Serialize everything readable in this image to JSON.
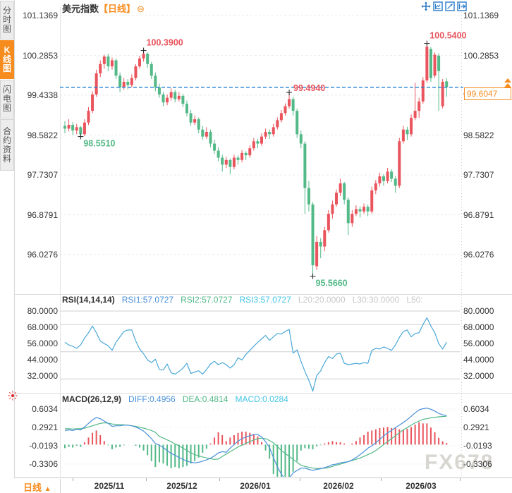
{
  "window": {
    "title_symbol": "美元指数",
    "title_period": "【日线】",
    "collapse_glyph": "⊖"
  },
  "sidebar": {
    "tabs": [
      {
        "label": "分时图",
        "active": false
      },
      {
        "label": "K线图",
        "active": true
      },
      {
        "label": "闪电图",
        "active": false
      },
      {
        "label": "合约资料",
        "active": false
      }
    ]
  },
  "toolbar": {
    "icons": [
      "move-crosshair",
      "axis-scale",
      "trend-measure",
      "pan-right"
    ]
  },
  "bottom_bar": {
    "period_label": "日线",
    "period_arrow": "▲",
    "dates": [
      "2025/11",
      "2025/12",
      "2026/01",
      "2026/02",
      "2026/03"
    ]
  },
  "watermark": "FX678",
  "price_tag": {
    "value": "99.6047"
  },
  "colors": {
    "up": "#e9545d",
    "down": "#53b987",
    "accent_orange": "#f78c1e",
    "last_price_line": "#2080d8",
    "rsi_line": "#4aa8d8",
    "diff_line": "#4a90d9",
    "dea_line": "#53b987",
    "grid": "#ebebeb",
    "ref_line": "#cfcfcf",
    "axis_text": "#333333",
    "toolbar_blue": "#2b7cc9",
    "flash_red": "#e03030",
    "cross": "#222222"
  },
  "chart_data": [
    {
      "type": "candlestick",
      "title": "美元指数 日线",
      "y_ticks": [
        "101.1369",
        "100.2853",
        "99.4338",
        "98.5822",
        "97.7307",
        "96.8791",
        "96.0276"
      ],
      "x_labels": [
        "2025/11",
        "2025/12",
        "2026/01",
        "2026/02",
        "2026/03"
      ],
      "last_price": 99.6047,
      "annotations": [
        {
          "index": 20,
          "price": 100.39,
          "label": "100.3900",
          "color": "#e9545d",
          "side": "above"
        },
        {
          "index": 4,
          "price": 98.551,
          "label": "98.5510",
          "color": "#53b987",
          "side": "below"
        },
        {
          "index": 57,
          "price": 99.494,
          "label": "99.4940",
          "color": "#e9545d",
          "side": "right"
        },
        {
          "index": 92,
          "price": 100.54,
          "label": "100.5400",
          "color": "#e9545d",
          "side": "above"
        },
        {
          "index": 63,
          "price": 95.566,
          "label": "95.5660",
          "color": "#53b987",
          "side": "below"
        }
      ],
      "candles": [
        [
          98.78,
          98.88,
          98.62,
          98.72
        ],
        [
          98.72,
          98.92,
          98.66,
          98.8
        ],
        [
          98.8,
          98.86,
          98.58,
          98.68
        ],
        [
          98.68,
          98.82,
          98.6,
          98.75
        ],
        [
          98.75,
          98.78,
          98.551,
          98.6
        ],
        [
          98.6,
          98.92,
          98.56,
          98.85
        ],
        [
          98.85,
          99.18,
          98.8,
          99.1
        ],
        [
          99.1,
          99.52,
          99.05,
          99.45
        ],
        [
          99.45,
          99.98,
          99.4,
          99.9
        ],
        [
          99.9,
          100.18,
          99.82,
          100.1
        ],
        [
          100.1,
          100.3,
          100.0,
          100.26
        ],
        [
          100.26,
          100.32,
          99.95,
          100.05
        ],
        [
          100.05,
          100.24,
          99.98,
          100.18
        ],
        [
          100.18,
          100.22,
          99.78,
          99.85
        ],
        [
          99.85,
          99.92,
          99.5,
          99.6
        ],
        [
          99.6,
          99.8,
          99.55,
          99.72
        ],
        [
          99.72,
          99.78,
          99.56,
          99.65
        ],
        [
          99.65,
          99.88,
          99.6,
          99.8
        ],
        [
          99.8,
          100.1,
          99.75,
          100.05
        ],
        [
          100.05,
          100.28,
          100.0,
          100.22
        ],
        [
          100.22,
          100.39,
          100.15,
          100.32
        ],
        [
          100.32,
          100.35,
          100.02,
          100.1
        ],
        [
          100.1,
          100.15,
          99.78,
          99.85
        ],
        [
          99.85,
          99.92,
          99.52,
          99.6
        ],
        [
          99.6,
          99.68,
          99.38,
          99.45
        ],
        [
          99.45,
          99.5,
          99.2,
          99.28
        ],
        [
          99.28,
          99.45,
          99.22,
          99.38
        ],
        [
          99.38,
          99.58,
          99.32,
          99.5
        ],
        [
          99.5,
          99.55,
          99.28,
          99.35
        ],
        [
          99.35,
          99.5,
          99.3,
          99.42
        ],
        [
          99.42,
          99.46,
          99.18,
          99.25
        ],
        [
          99.25,
          99.32,
          98.98,
          99.05
        ],
        [
          99.05,
          99.12,
          98.78,
          98.85
        ],
        [
          98.85,
          99.0,
          98.8,
          98.92
        ],
        [
          98.92,
          98.96,
          98.62,
          98.7
        ],
        [
          98.7,
          98.78,
          98.48,
          98.55
        ],
        [
          98.55,
          98.75,
          98.5,
          98.65
        ],
        [
          98.65,
          98.7,
          98.32,
          98.4
        ],
        [
          98.4,
          98.48,
          98.18,
          98.25
        ],
        [
          98.25,
          98.32,
          98.02,
          98.1
        ],
        [
          98.1,
          98.16,
          97.8,
          97.95
        ],
        [
          97.95,
          98.12,
          97.88,
          98.05
        ],
        [
          98.05,
          98.08,
          97.75,
          97.9
        ],
        [
          97.9,
          98.16,
          97.85,
          98.1
        ],
        [
          98.1,
          98.15,
          97.95,
          98.05
        ],
        [
          98.05,
          98.26,
          98.0,
          98.2
        ],
        [
          98.2,
          98.24,
          98.05,
          98.15
        ],
        [
          98.15,
          98.36,
          98.1,
          98.3
        ],
        [
          98.3,
          98.52,
          98.25,
          98.45
        ],
        [
          98.45,
          98.5,
          98.3,
          98.4
        ],
        [
          98.4,
          98.62,
          98.35,
          98.55
        ],
        [
          98.55,
          98.72,
          98.5,
          98.65
        ],
        [
          98.65,
          98.7,
          98.5,
          98.6
        ],
        [
          98.6,
          98.82,
          98.55,
          98.75
        ],
        [
          98.75,
          98.96,
          98.7,
          98.9
        ],
        [
          98.9,
          99.12,
          98.85,
          99.05
        ],
        [
          99.05,
          99.26,
          99.0,
          99.2
        ],
        [
          99.2,
          99.494,
          99.15,
          99.35
        ],
        [
          99.35,
          99.4,
          99.0,
          99.1
        ],
        [
          99.1,
          99.15,
          98.52,
          98.6
        ],
        [
          98.6,
          98.68,
          98.3,
          98.4
        ],
        [
          98.4,
          98.45,
          96.9,
          97.45
        ],
        [
          97.45,
          97.6,
          96.95,
          97.1
        ],
        [
          97.1,
          97.15,
          95.566,
          95.8
        ],
        [
          95.78,
          96.42,
          95.7,
          96.3
        ],
        [
          96.3,
          96.38,
          95.95,
          96.2
        ],
        [
          96.2,
          96.62,
          96.1,
          96.55
        ],
        [
          96.55,
          96.98,
          96.5,
          96.9
        ],
        [
          96.9,
          97.18,
          96.8,
          97.1
        ],
        [
          97.1,
          97.42,
          97.05,
          97.35
        ],
        [
          97.35,
          97.65,
          97.28,
          97.55
        ],
        [
          97.55,
          97.58,
          97.1,
          97.2
        ],
        [
          97.2,
          97.25,
          96.45,
          96.7
        ],
        [
          96.7,
          96.98,
          96.62,
          96.9
        ],
        [
          96.9,
          97.08,
          96.85,
          97.0
        ],
        [
          97.0,
          97.06,
          96.82,
          96.95
        ],
        [
          96.95,
          97.12,
          96.9,
          97.05
        ],
        [
          97.05,
          97.1,
          96.85,
          96.95
        ],
        [
          96.95,
          97.48,
          96.9,
          97.4
        ],
        [
          97.4,
          97.62,
          97.32,
          97.55
        ],
        [
          97.55,
          97.78,
          97.48,
          97.7
        ],
        [
          97.7,
          97.75,
          97.5,
          97.6
        ],
        [
          97.6,
          97.88,
          97.55,
          97.8
        ],
        [
          97.8,
          97.85,
          97.58,
          97.65
        ],
        [
          97.65,
          97.7,
          97.35,
          97.5
        ],
        [
          97.5,
          98.52,
          97.45,
          98.45
        ],
        [
          98.45,
          98.78,
          98.4,
          98.7
        ],
        [
          98.7,
          98.76,
          98.48,
          98.6
        ],
        [
          98.6,
          99.02,
          98.55,
          98.95
        ],
        [
          98.95,
          99.7,
          98.9,
          99.1
        ],
        [
          99.1,
          99.38,
          98.95,
          99.3
        ],
        [
          99.3,
          99.82,
          99.25,
          99.75
        ],
        [
          99.75,
          100.54,
          99.7,
          100.47
        ],
        [
          100.42,
          100.46,
          99.72,
          99.8
        ],
        [
          99.85,
          100.35,
          99.8,
          100.3
        ],
        [
          100.28,
          100.33,
          99.1,
          99.95
        ],
        [
          99.2,
          99.78,
          99.15,
          99.72
        ],
        [
          99.73,
          99.8,
          99.4,
          99.6047
        ]
      ]
    },
    {
      "type": "line",
      "name": "RSI",
      "header": [
        {
          "text": "RSI(14,14,14)",
          "color": "#333333",
          "bold": true
        },
        {
          "text": "RSI1:57.0727",
          "color": "#4a90d9"
        },
        {
          "text": "RSI2:57.0727",
          "color": "#53b987"
        },
        {
          "text": "RSI3:57.0727",
          "color": "#45c5e5"
        },
        {
          "text": "L20:20.0000",
          "color": "#c9c9c9"
        },
        {
          "text": "L30:30.0000",
          "color": "#c9c9c9"
        },
        {
          "text": "L50:",
          "color": "#c9c9c9"
        }
      ],
      "y_ticks": [
        "80.0000",
        "68.0000",
        "56.0000",
        "44.0000",
        "32.0000"
      ],
      "ref_lines": [
        80,
        70,
        50,
        30
      ],
      "values": [
        57,
        55,
        54,
        52.5,
        55,
        60,
        64,
        69,
        64,
        58,
        56,
        54.5,
        51,
        57,
        61,
        65,
        66,
        66,
        58,
        52,
        48.5,
        44,
        42,
        44.5,
        37,
        36.5,
        41,
        34.5,
        33.5,
        35.5,
        38,
        41.5,
        34,
        35,
        36,
        33.5,
        37,
        41,
        43,
        40.5,
        42,
        40.5,
        38,
        40.5,
        45.5,
        44,
        48,
        51,
        54,
        57,
        59.5,
        62,
        58.5,
        61,
        63.5,
        63,
        65,
        66.5,
        49,
        51.5,
        43,
        35.5,
        29,
        21,
        32.5,
        36,
        42,
        46.5,
        45,
        48.3,
        49,
        41.5,
        40.5,
        41,
        41.5,
        41,
        42,
        41.5,
        51,
        52.5,
        52,
        53.5,
        52.5,
        51,
        55,
        60.5,
        65,
        66,
        61,
        63.5,
        64,
        70,
        75,
        69,
        64,
        56,
        52,
        57.0727
      ]
    },
    {
      "type": "macd",
      "name": "MACD",
      "header": [
        {
          "text": "MACD(26,12,9)",
          "color": "#333333",
          "bold": true
        },
        {
          "text": "DIFF:0.4956",
          "color": "#4a90d9"
        },
        {
          "text": "DEA:0.4814",
          "color": "#53b987"
        },
        {
          "text": "MACD:0.0284",
          "color": "#45c5e5"
        }
      ],
      "y_ticks": [
        "0.6034",
        "0.2921",
        "-0.0193",
        "-0.3306"
      ],
      "hist_rule": "2*(diff-dea)",
      "diff": [
        0.24,
        0.25,
        0.24,
        0.26,
        0.25,
        0.3,
        0.36,
        0.42,
        0.46,
        0.44,
        0.4,
        0.36,
        0.31,
        0.32,
        0.32,
        0.33,
        0.33,
        0.32,
        0.3,
        0.27,
        0.23,
        0.17,
        0.1,
        0.02,
        -0.01,
        -0.05,
        -0.1,
        -0.15,
        -0.18,
        -0.22,
        -0.25,
        -0.28,
        -0.3,
        -0.31,
        -0.3,
        -0.28,
        -0.26,
        -0.23,
        -0.19,
        -0.14,
        -0.12,
        -0.13,
        -0.06,
        0,
        0.06,
        0.1,
        0.13,
        0.15,
        0.17,
        0.17,
        0.13,
        0.05,
        -0.05,
        -0.22,
        -0.38,
        -0.5,
        -0.59,
        -0.57,
        -0.48,
        -0.44,
        -0.4,
        -0.4,
        -0.42,
        -0.44,
        -0.42,
        -0.41,
        -0.39,
        -0.37,
        -0.34,
        -0.33,
        -0.31,
        -0.3,
        -0.29,
        -0.26,
        -0.22,
        -0.17,
        -0.12,
        -0.06,
        -0.02,
        0.03,
        0.09,
        0.145,
        0.2,
        0.24,
        0.29,
        0.33,
        0.375,
        0.425,
        0.48,
        0.54,
        0.59,
        0.61,
        0.62,
        0.6,
        0.57,
        0.53,
        0.505,
        0.4956
      ],
      "dea": [
        0.27,
        0.27,
        0.265,
        0.27,
        0.27,
        0.28,
        0.3,
        0.32,
        0.34,
        0.36,
        0.37,
        0.365,
        0.35,
        0.345,
        0.34,
        0.335,
        0.33,
        0.32,
        0.31,
        0.295,
        0.28,
        0.26,
        0.24,
        0.21,
        0.14,
        0.11,
        0.08,
        0.05,
        0.01,
        -0.02,
        -0.06,
        -0.1,
        -0.14,
        -0.17,
        -0.19,
        -0.21,
        -0.225,
        -0.24,
        -0.25,
        -0.245,
        -0.2,
        -0.16,
        -0.12,
        -0.08,
        -0.04,
        -0.01,
        0.02,
        0.05,
        0.08,
        0.1,
        0.11,
        0.1,
        0.07,
        0.03,
        -0.03,
        -0.1,
        -0.15,
        -0.2,
        -0.25,
        -0.3,
        -0.35,
        -0.37,
        -0.385,
        -0.4,
        -0.405,
        -0.405,
        -0.4,
        -0.39,
        -0.37,
        -0.35,
        -0.33,
        -0.31,
        -0.29,
        -0.27,
        -0.25,
        -0.23,
        -0.2,
        -0.17,
        -0.14,
        -0.1,
        -0.05,
        0,
        0.05,
        0.1,
        0.15,
        0.2,
        0.25,
        0.29,
        0.33,
        0.37,
        0.4,
        0.43,
        0.44,
        0.455,
        0.465,
        0.472,
        0.477,
        0.4814
      ]
    }
  ]
}
